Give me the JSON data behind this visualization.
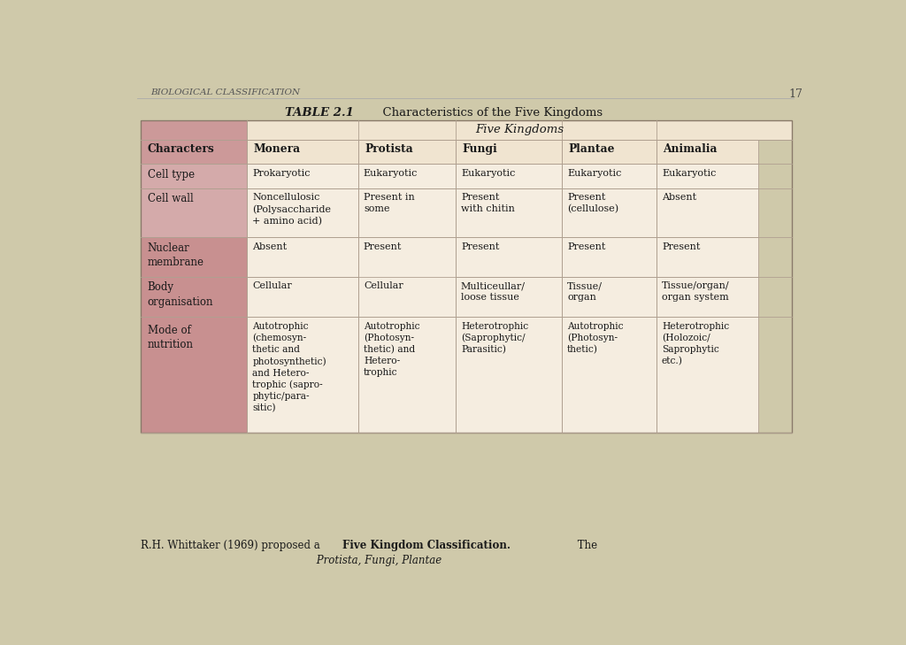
{
  "title_bold": "TABLE 2.1",
  "title_rest": "  Characteristics of the Five Kingdoms",
  "header_top": "Five Kingdoms",
  "col0_header": "Characters",
  "columns": [
    "Monera",
    "Protista",
    "Fungi",
    "Plantae",
    "Animalia"
  ],
  "characters": [
    "Cell type",
    "Cell wall",
    "Nuclear\nmembrane",
    "Body\norganisation",
    "Mode of\nnutrition"
  ],
  "all_vals": [
    [
      "Prokaryotic",
      "Eukaryotic",
      "Eukaryotic",
      "Eukaryotic",
      "Eukaryotic"
    ],
    [
      "Noncellulosic\n(Polysaccharide\n+ amino acid)",
      "Present in\nsome",
      "Present\nwith chitin",
      "Present\n(cellulose)",
      "Absent"
    ],
    [
      "Absent",
      "Present",
      "Present",
      "Present",
      "Present"
    ],
    [
      "Cellular",
      "Cellular",
      "Multiceullar/\nloose tissue",
      "Tissue/\norgan",
      "Tissue/organ/\norgan system"
    ],
    [
      "Autotrophic\n(chemosyn-\nthetic and\nphotosynthetic)\nand Hetero-\ntrophic (sapro-\nphytic/para-\nsitic)",
      "Autotrophic\n(Photosyn-\nthetic) and\nHetero-\ntrophic",
      "Heterotrophic\n(Saprophytic/\nParasitic)",
      "Autotrophic\n(Photosyn-\nthetic)",
      "Heterotrophic\n(Holozoic/\nSaprophytic\netc.)"
    ]
  ],
  "bg_color_page": "#cfc9aa",
  "cream": "#f5ede0",
  "header_bg": "#f0e4d0",
  "pink_dark": "#cc9999",
  "pink_med": "#d4aaaa",
  "pink_char": "#c89090",
  "grid_color": "#b0a090",
  "border_color": "#8a7a6a",
  "text_color": "#1a1a1a",
  "page_header": "BIOLOGICAL CLASSIFICATION",
  "page_number": "17",
  "footer_normal": "R.H. Whittaker (1969) proposed a ",
  "footer_bold": "Five Kingdom Classification.",
  "footer_end": " The",
  "footer_line2": "                                                     Protista, Fungi, Plantae"
}
